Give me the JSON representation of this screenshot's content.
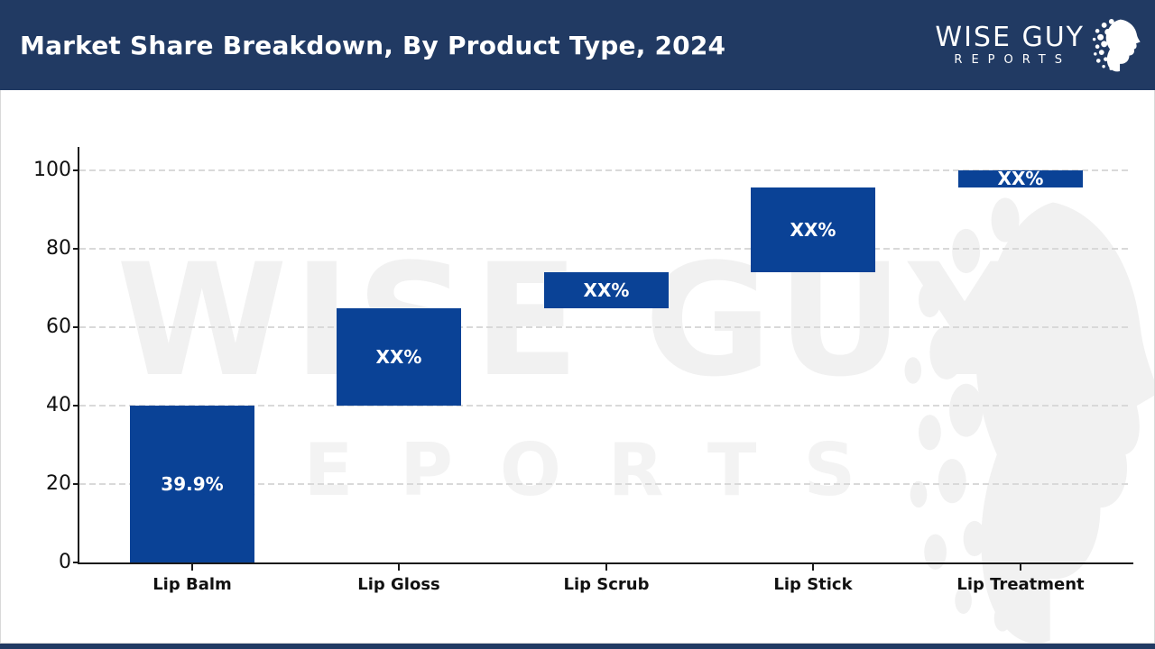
{
  "header": {
    "title": "Market Share Breakdown, By Product Type, 2024",
    "logo": {
      "line1": "WISE GUY",
      "line2": "REPORTS"
    }
  },
  "watermark": {
    "line1": "WISE GUY",
    "line2": "REPORTS"
  },
  "colors": {
    "header_bg": "#213a63",
    "bar": "#0a4296",
    "bar_label": "#ffffff",
    "grid": "#d9d9d9",
    "axis": "#1a1a1a",
    "watermark": "#f1f1f1"
  },
  "chart_data": {
    "type": "bar",
    "subtype": "waterfall",
    "title": "Market Share Breakdown, By Product Type, 2024",
    "categories": [
      "Lip Balm",
      "Lip Gloss",
      "Lip Scrub",
      "Lip Stick",
      "Lip Treatment"
    ],
    "segments": [
      {
        "category": "Lip Balm",
        "start": 0,
        "end": 39.9,
        "label": "39.9%"
      },
      {
        "category": "Lip Gloss",
        "start": 39.9,
        "end": 64.8,
        "label": "XX%"
      },
      {
        "category": "Lip Scrub",
        "start": 64.8,
        "end": 74.0,
        "label": "XX%"
      },
      {
        "category": "Lip Stick",
        "start": 74.0,
        "end": 95.7,
        "label": "XX%"
      },
      {
        "category": "Lip Treatment",
        "start": 95.7,
        "end": 100.0,
        "label": "XX%"
      }
    ],
    "yticks": [
      0,
      20,
      40,
      60,
      80,
      100
    ],
    "ylim": [
      0,
      106
    ],
    "xlabel": "",
    "ylabel": "",
    "grid": "horizontal-dashed",
    "legend": "none"
  }
}
